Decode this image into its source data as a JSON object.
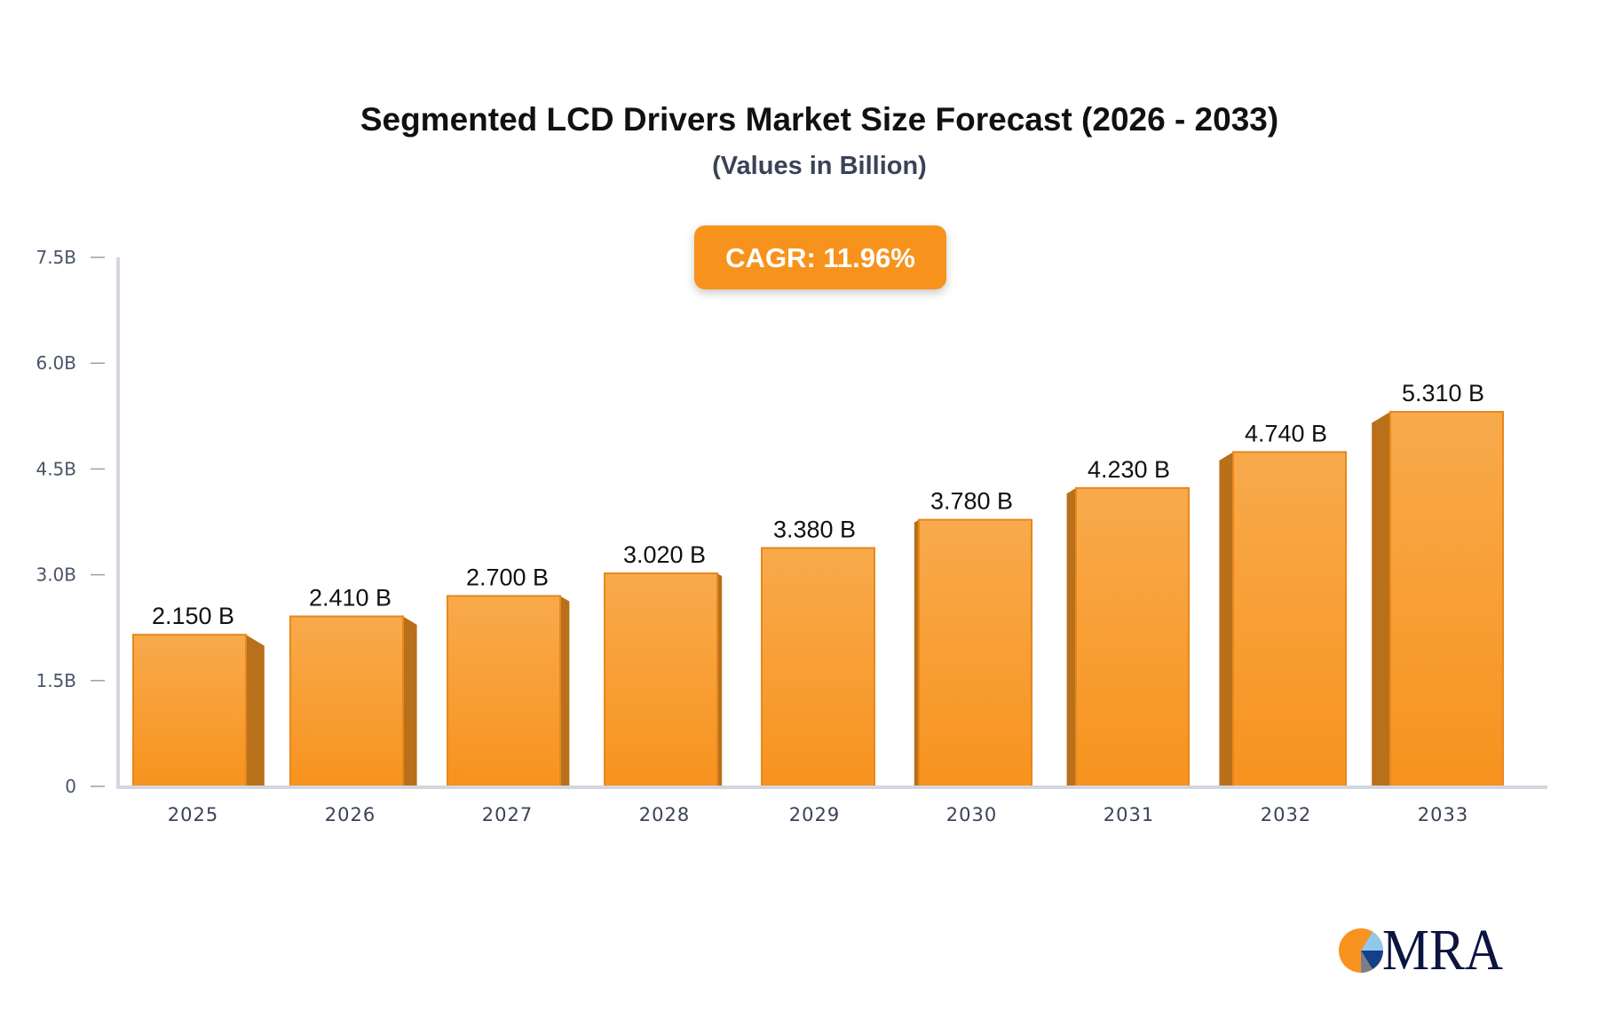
{
  "chart_data": {
    "type": "bar",
    "title": "Segmented LCD Drivers Market Size Forecast (2026 - 2033)",
    "subtitle": "(Values in Billion)",
    "annotation": "CAGR: 11.96%",
    "categories": [
      "2025",
      "2026",
      "2027",
      "2028",
      "2029",
      "2030",
      "2031",
      "2032",
      "2033"
    ],
    "values": [
      2.15,
      2.41,
      2.7,
      3.02,
      3.38,
      3.78,
      4.23,
      4.74,
      5.31
    ],
    "data_labels": [
      "2.150 B",
      "2.410 B",
      "2.700 B",
      "3.020 B",
      "3.380 B",
      "3.780 B",
      "4.230 B",
      "4.740 B",
      "5.310 B"
    ],
    "ylim": [
      0,
      7.5
    ],
    "yticks": [
      0,
      1.5,
      3.0,
      4.5,
      6.0,
      7.5
    ],
    "ytick_labels": [
      "0",
      "1.5B",
      "3.0B",
      "4.5B",
      "6.0B",
      "7.5B"
    ],
    "xlabel": "",
    "ylabel": "",
    "grid": false,
    "legend": "none",
    "colors": {
      "bar": "#f7931e",
      "bar_top": "#f8aa4c",
      "bar_side": "#b8701a",
      "accent": "#f7931e",
      "axis": "#d3d6de"
    }
  },
  "logo": {
    "text": "MRA"
  }
}
